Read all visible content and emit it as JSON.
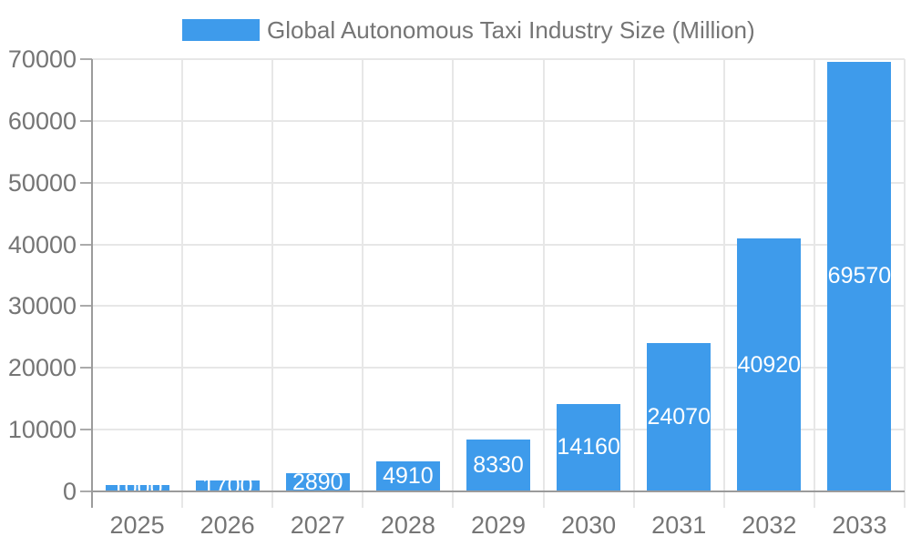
{
  "chart_data": {
    "type": "bar",
    "title": "",
    "legend": "Global Autonomous Taxi Industry Size (Million)",
    "legend_position": "top",
    "categories": [
      "2025",
      "2026",
      "2027",
      "2028",
      "2029",
      "2030",
      "2031",
      "2032",
      "2033"
    ],
    "values": [
      1000,
      1700,
      2890,
      4910,
      8330,
      14160,
      24070,
      40920,
      69570
    ],
    "bar_value_labels": [
      "1000",
      "1700",
      "2890",
      "4910",
      "8330",
      "14160",
      "24070",
      "40920",
      "69570"
    ],
    "xlabel": "",
    "ylabel": "",
    "ylim": [
      0,
      70000
    ],
    "y_tick_step": 10000,
    "y_tick_labels": [
      "0",
      "10000",
      "20000",
      "30000",
      "40000",
      "50000",
      "60000",
      "70000"
    ],
    "grid": true,
    "colors": {
      "bar": "#3E9BEB",
      "bar_value_text": "#ffffff",
      "axis_text": "#757575",
      "axis_line": "#9b9b9b",
      "gridline": "#e7e7e7",
      "tick": "#ababab"
    }
  }
}
